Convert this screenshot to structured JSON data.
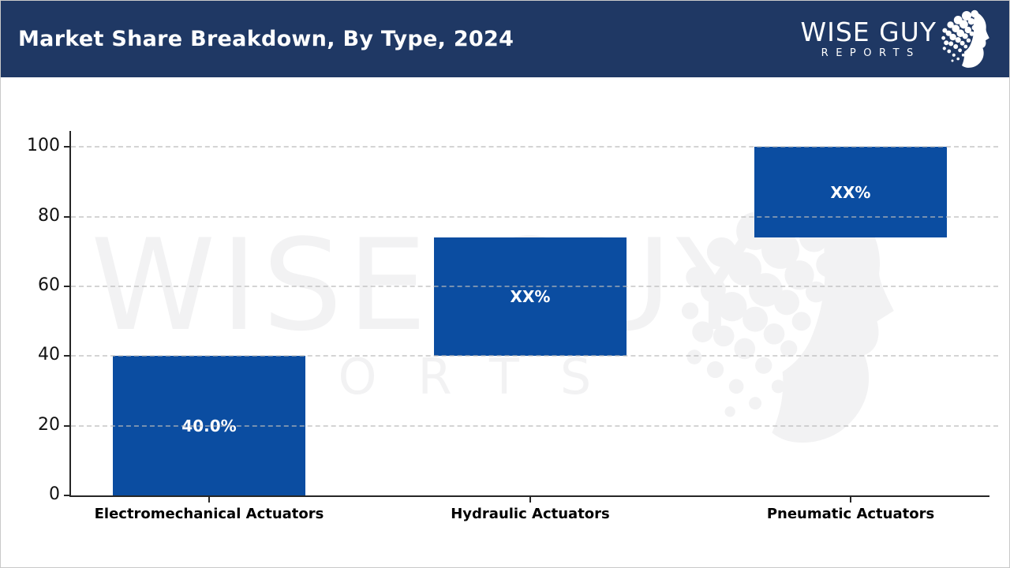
{
  "header": {
    "title": "Market Share Breakdown, By Type, 2024",
    "logo": {
      "line1": "WISE GUY",
      "line2": "REPORTS"
    }
  },
  "watermark": {
    "line1": "WISE GUY",
    "line2": "REPORTS"
  },
  "chart_data": {
    "type": "bar",
    "subtype": "waterfall-stacked-segments",
    "title": "Market Share Breakdown, By Type, 2024",
    "categories": [
      "Electromechanical Actuators",
      "Hydraulic Actuators",
      "Pneumatic Actuators"
    ],
    "segments": [
      {
        "category": "Electromechanical Actuators",
        "start": 0,
        "end": 40,
        "label": "40.0%"
      },
      {
        "category": "Hydraulic Actuators",
        "start": 40,
        "end": 74,
        "label": "XX%"
      },
      {
        "category": "Pneumatic Actuators",
        "start": 74,
        "end": 100,
        "label": "XX%"
      }
    ],
    "ylim": [
      0,
      100
    ],
    "yticks": [
      0,
      20,
      40,
      60,
      80,
      100
    ],
    "grid": "horizontal-dashed",
    "legend": "none",
    "colors": {
      "bar": "#0b4da1",
      "bar_label": "#ffffff",
      "grid": "#d9d9d9",
      "axis": "#262626",
      "tick_label": "#111111"
    }
  },
  "colors": {
    "header_bg": "#1f3864",
    "page_bg": "#ffffff",
    "watermark": "#f2f2f3",
    "border": "#c9c9c9"
  }
}
